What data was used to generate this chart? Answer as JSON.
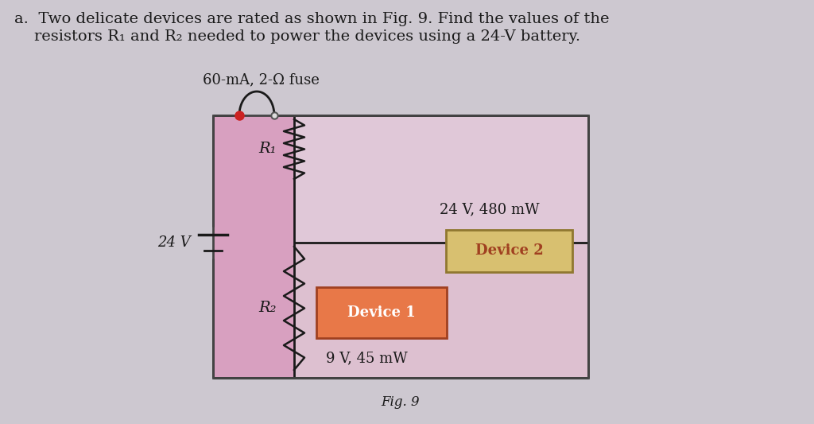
{
  "background_color": "#cdc8d0",
  "text_color": "#1a1a1a",
  "title_line1": "a.  Two delicate devices are rated as shown in Fig. 9. Find the values of the",
  "title_line2": "    resistors R₁ and R₂ needed to power the devices using a 24-V battery.",
  "fuse_label": "60-mA, 2-Ω fuse",
  "battery_label": "24 V",
  "device1_label": "Device 1",
  "device1_rating": "9 V, 45 mW",
  "device2_label": "Device 2",
  "device2_rating": "24 V, 480 mW",
  "R1_label": "R₁",
  "R2_label": "R₂",
  "fig_label": "Fig. 9",
  "circuit_bg_left": "#dba8c8",
  "circuit_bg_right": "#e8d0e0",
  "device1_fill": "#e87848",
  "device1_edge": "#a04020",
  "device2_fill": "#d8c070",
  "device2_edge": "#907830",
  "wire_color": "#1a1a1a",
  "font_size_body": 14,
  "font_size_circuit": 13,
  "font_size_device": 13
}
